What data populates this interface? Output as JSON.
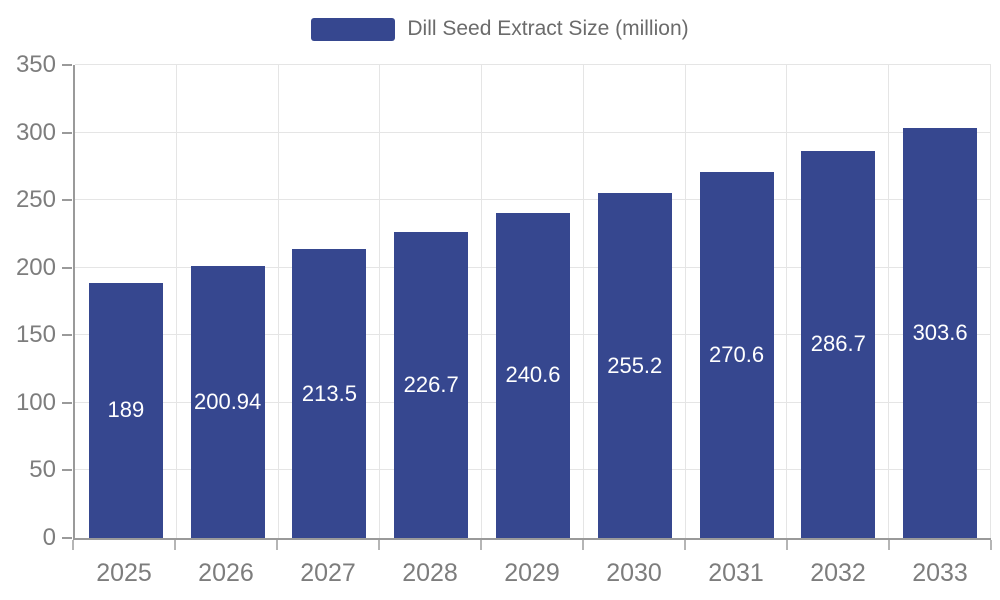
{
  "legend": {
    "label": "Dill Seed Extract Size (million)"
  },
  "chart_data": {
    "type": "bar",
    "title": "Dill Seed Extract Size (million)",
    "categories": [
      "2025",
      "2026",
      "2027",
      "2028",
      "2029",
      "2030",
      "2031",
      "2032",
      "2033"
    ],
    "values": [
      189,
      200.94,
      213.5,
      226.7,
      240.6,
      255.2,
      270.6,
      286.7,
      303.6
    ],
    "value_labels": [
      "189",
      "200.94",
      "213.5",
      "226.7",
      "240.6",
      "255.2",
      "270.6",
      "286.7",
      "303.6"
    ],
    "xlabel": "",
    "ylabel": "",
    "ylim": [
      0,
      350
    ],
    "yticks": [
      0,
      50,
      100,
      150,
      200,
      250,
      300,
      350
    ],
    "grid": true,
    "legend_position": "top-center",
    "colors": {
      "bar": "#36478f",
      "grid": "#e5e5e5",
      "axis": "#9a9a9a",
      "tick_label": "#7d7d7d",
      "value_label": "#ffffff",
      "legend_text": "#6b6b6b",
      "background": "#ffffff"
    }
  }
}
